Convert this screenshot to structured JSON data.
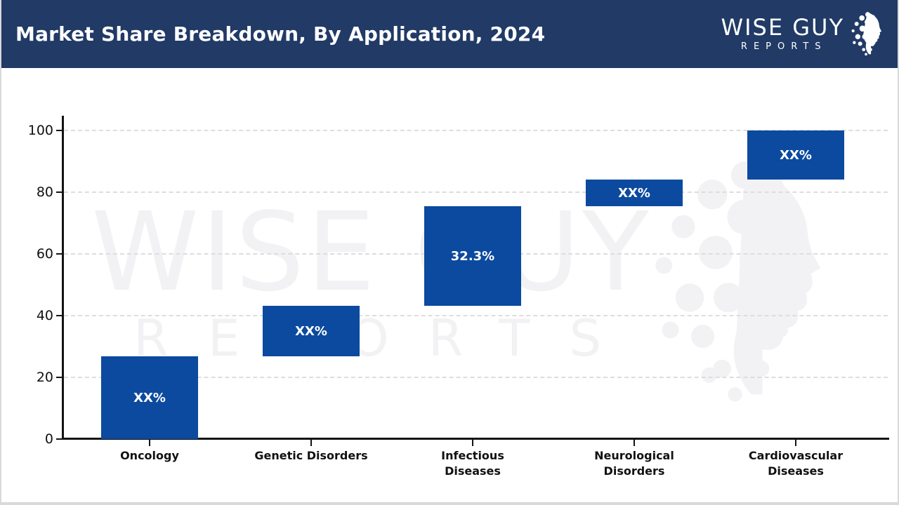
{
  "header": {
    "title": "Market Share Breakdown, By Application, 2024",
    "logo": {
      "brand_top": "WISE GUY",
      "brand_bottom": "REPORTS"
    }
  },
  "watermark": {
    "line1": "WISE GUY",
    "line2": "REPORTS"
  },
  "colors": {
    "header_bg": "#213a66",
    "bar_blue": "#0b4a9f",
    "grid_gray": "#dddddd",
    "axis_black": "#141414",
    "watermark_gray": "#f2f2f4",
    "frame_gray": "#d9d9d9"
  },
  "chart_data": {
    "type": "bar",
    "subtype": "waterfall",
    "title": "Market Share Breakdown, By Application, 2024",
    "categories": [
      "Oncology",
      "Genetic Disorders",
      "Infectious Diseases",
      "Neurological Disorders",
      "Cardiovascular Diseases"
    ],
    "tick_labels": [
      "Oncology",
      "Genetic Disorders",
      "Infectious\nDiseases",
      "Neurological\nDisorders",
      "Cardiovascular\nDiseases"
    ],
    "segments": [
      {
        "category": "Oncology",
        "start": 0,
        "end": 26.8,
        "label": "XX%"
      },
      {
        "category": "Genetic Disorders",
        "start": 26.8,
        "end": 43.1,
        "label": "XX%"
      },
      {
        "category": "Infectious Diseases",
        "start": 43.1,
        "end": 75.4,
        "label": "32.3%"
      },
      {
        "category": "Neurological Disorders",
        "start": 75.4,
        "end": 84.0,
        "label": "XX%"
      },
      {
        "category": "Cardiovascular Diseases",
        "start": 84.0,
        "end": 100.0,
        "label": "XX%"
      }
    ],
    "ylim": [
      0,
      100
    ],
    "yticks": [
      0,
      20,
      40,
      60,
      80,
      100
    ],
    "xlabel": "",
    "ylabel": "",
    "grid": {
      "horizontal": true,
      "style": "dashed"
    },
    "legend": "none",
    "bar_color": "#0b4a9f",
    "bar_label_color": "#ffffff"
  }
}
